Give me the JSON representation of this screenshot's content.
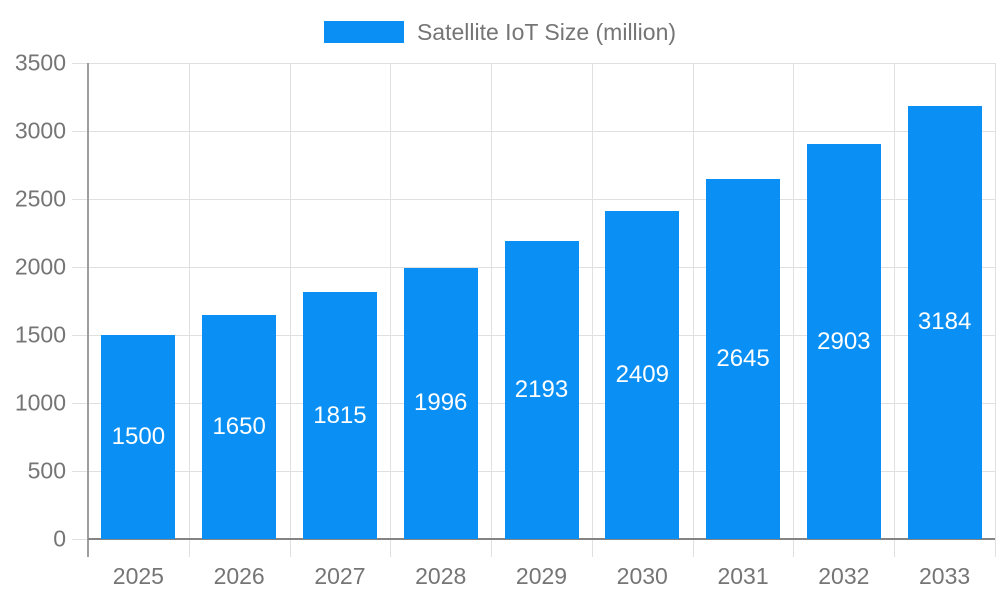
{
  "chart_data": {
    "type": "bar",
    "title": "Satellite IoT Size (million)",
    "categories": [
      "2025",
      "2026",
      "2027",
      "2028",
      "2029",
      "2030",
      "2031",
      "2032",
      "2033"
    ],
    "values": [
      1500,
      1650,
      1815,
      1996,
      2193,
      2409,
      2645,
      2903,
      3184
    ],
    "xlabel": "",
    "ylabel": "",
    "ylim": [
      0,
      3500
    ],
    "y_ticks": [
      0,
      500,
      1000,
      1500,
      2000,
      2500,
      3000,
      3500
    ],
    "grid": true,
    "legend_position": "top-center",
    "bar_labels_inside": true,
    "colors": {
      "bar": "#0a90f4",
      "bar_label": "#ffffff",
      "axis_text": "#757575",
      "gridline": "#e0e0e0",
      "y_axis_line": "#9e9e9e",
      "x_axis_line": "#848484",
      "background": "#ffffff"
    }
  }
}
